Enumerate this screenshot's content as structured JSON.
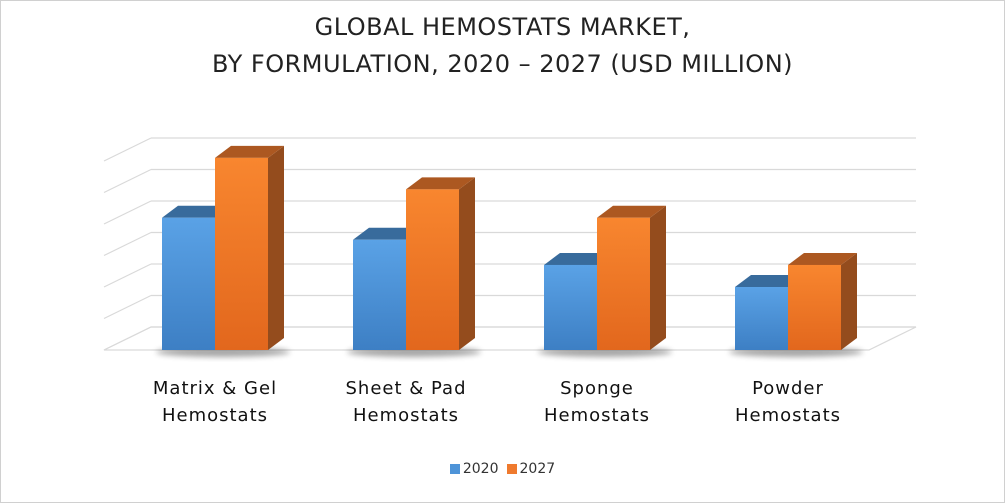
{
  "chart_data": {
    "type": "bar",
    "title_lines": [
      "GLOBAL HEMOSTATS MARKET,",
      "BY FORMULATION, 2020 – 2027 (USD MILLION)"
    ],
    "categories": [
      [
        "Matrix & Gel",
        "Hemostats"
      ],
      [
        "Sheet & Pad",
        "Hemostats"
      ],
      [
        "Sponge",
        "Hemostats"
      ],
      [
        "Powder",
        "Hemostats"
      ]
    ],
    "series": [
      {
        "name": "2020",
        "values": [
          4.2,
          3.5,
          2.7,
          2.0
        ],
        "color": "#4e94d8"
      },
      {
        "name": "2027",
        "values": [
          6.1,
          5.1,
          4.2,
          2.7
        ],
        "color": "#ef7a2e"
      }
    ],
    "ylim": [
      0,
      7
    ],
    "grid": true,
    "three_d": true,
    "legend_position": "bottom"
  }
}
